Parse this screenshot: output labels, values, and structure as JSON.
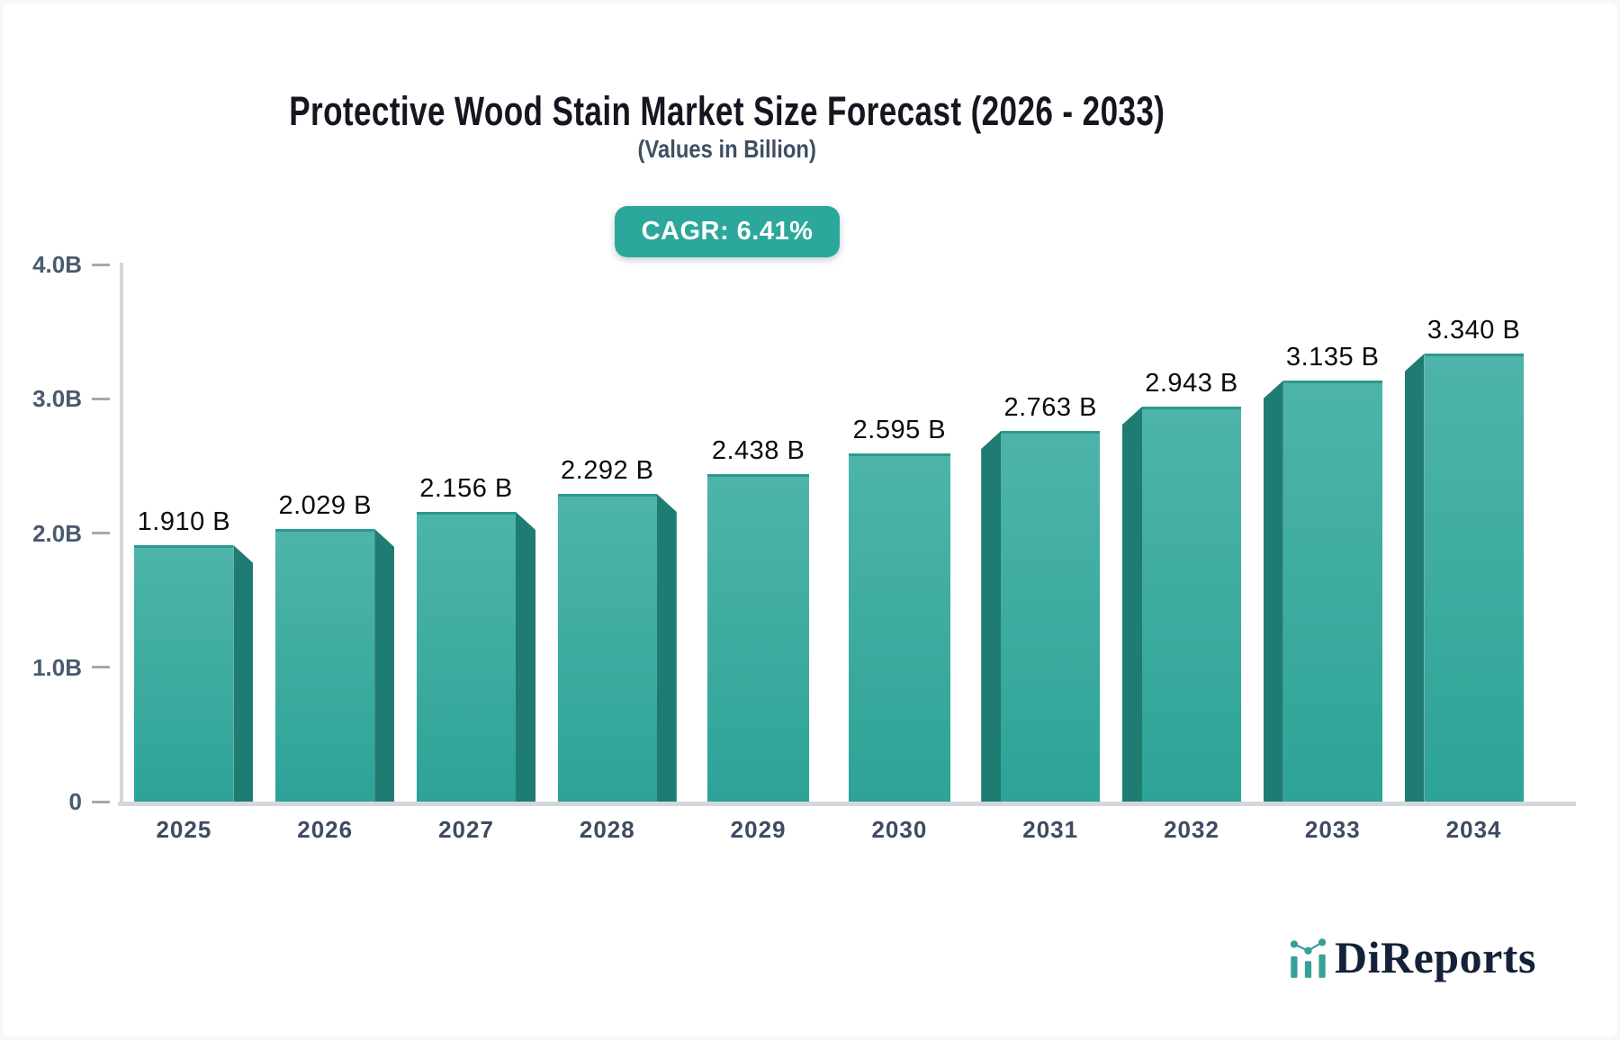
{
  "header": {
    "title": "Protective Wood Stain Market Size Forecast (2026 - 2033)",
    "subtitle": "(Values in Billion)",
    "badge": "CAGR: 6.41%"
  },
  "chart_data": {
    "type": "bar",
    "title": "Protective Wood Stain Market Size Forecast (2026 - 2033)",
    "subtitle": "(Values in Billion)",
    "unit": "Billion",
    "cagr": "6.41%",
    "categories": [
      "2025",
      "2026",
      "2027",
      "2028",
      "2029",
      "2030",
      "2031",
      "2032",
      "2033",
      "2034"
    ],
    "values": [
      1.91,
      2.029,
      2.156,
      2.292,
      2.438,
      2.595,
      2.763,
      2.943,
      3.135,
      3.34
    ],
    "value_labels": [
      "1.910 B",
      "2.029 B",
      "2.156 B",
      "2.292 B",
      "2.438 B",
      "2.595 B",
      "2.763 B",
      "2.943 B",
      "3.135 B",
      "3.340 B"
    ],
    "depth_direction": [
      "right",
      "right",
      "right",
      "right",
      "flat",
      "flat",
      "left",
      "left",
      "left",
      "left"
    ],
    "y_ticks": [
      {
        "value": 4.0,
        "label": "4.0B"
      },
      {
        "value": 3.0,
        "label": "3.0B"
      },
      {
        "value": 2.0,
        "label": "2.0B"
      },
      {
        "value": 1.0,
        "label": "1.0B"
      },
      {
        "value": 0,
        "label": "0"
      }
    ],
    "ylim": [
      0,
      4.0
    ],
    "grid": false,
    "legend": false
  },
  "colors": {
    "background": "#f7f8f9",
    "card": "#ffffff",
    "accent_badge": "#2ba89b",
    "bar_top": "#4eb4aa",
    "bar_bottom": "#2da397",
    "bar_side": "#1e7c72",
    "bar_edge": "#2c998d",
    "axis_line": "#d3d7dc",
    "tick_dash": "#a2a9b3",
    "y_label": "#4a5a6e",
    "x_label": "#3e4b60",
    "value_label": "#0c0c0c",
    "title": "#15161f",
    "subtitle": "#404f63",
    "logo_text": "#142239",
    "logo_icon": "#37a199"
  },
  "footer": {
    "logo_text": "DiReports"
  }
}
